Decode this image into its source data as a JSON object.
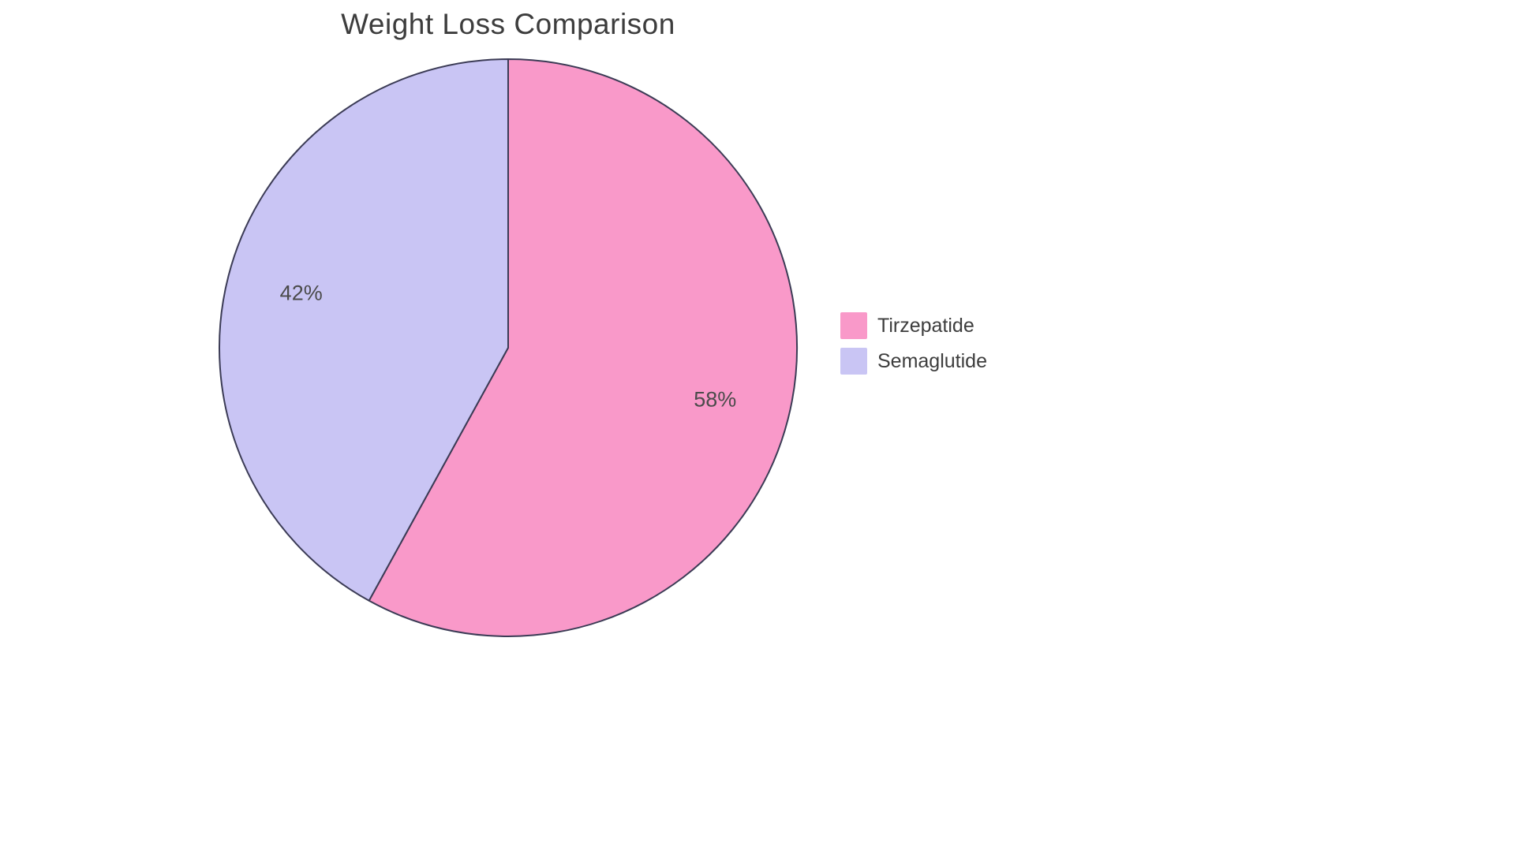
{
  "chart_data": {
    "type": "pie",
    "title": "Weight Loss Comparison",
    "slices": [
      {
        "name": "Tirzepatide",
        "value": 58,
        "label": "58%",
        "color": "#F999C9"
      },
      {
        "name": "Semaglutide",
        "value": 42,
        "label": "42%",
        "color": "#C9C5F4"
      }
    ],
    "legend_position": "right",
    "start_angle_deg": -90,
    "direction": "clockwise",
    "stroke_color": "#3B3B55",
    "stroke_width": 2,
    "background_color": "#FFFFFF",
    "label_color": "#4B4B4B"
  }
}
